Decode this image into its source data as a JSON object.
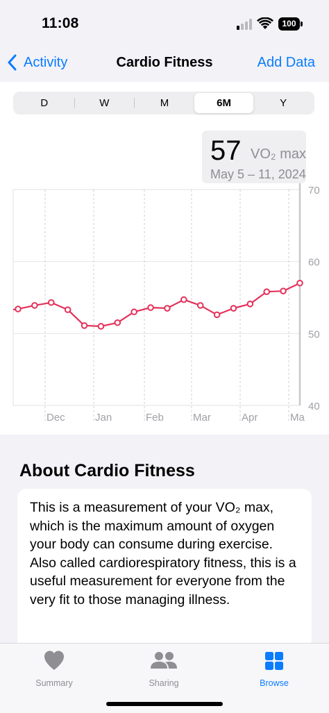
{
  "status": {
    "time": "11:08",
    "battery": "100"
  },
  "nav": {
    "back_label": "Activity",
    "title": "Cardio Fitness",
    "add_data_label": "Add Data"
  },
  "segments": [
    {
      "label": "D",
      "active": false
    },
    {
      "label": "W",
      "active": false
    },
    {
      "label": "M",
      "active": false
    },
    {
      "label": "6M",
      "active": true
    },
    {
      "label": "Y",
      "active": false
    }
  ],
  "selection": {
    "value": "57",
    "unit": "VO₂ max",
    "date_range": "May 5 – 11, 2024"
  },
  "chart_data": {
    "type": "line",
    "x_tick_labels": [
      "Dec",
      "Jan",
      "Feb",
      "Mar",
      "Apr",
      "Ma"
    ],
    "y_tick_labels": [
      "70",
      "60",
      "50",
      "40"
    ],
    "ylim": [
      40,
      70
    ],
    "grid": true,
    "series_color": "#e4325a",
    "series": [
      {
        "values": [
          53.4,
          53.9,
          54.3,
          53.3,
          51.1,
          51.0,
          51.5,
          53.0,
          53.6,
          53.5,
          54.7,
          53.9,
          52.6,
          53.5,
          54.1,
          55.8,
          55.9,
          57.0
        ]
      }
    ]
  },
  "about": {
    "title": "About Cardio Fitness",
    "text": "This is a measurement of your VO₂ max, which is the maximum amount of oxygen your body can consume during exercise. Also called cardiorespiratory fitness, this is a useful measurement for everyone from the very fit to those managing illness."
  },
  "tabs": [
    {
      "label": "Summary",
      "icon": "heart-icon",
      "active": false
    },
    {
      "label": "Sharing",
      "icon": "people-icon",
      "active": false
    },
    {
      "label": "Browse",
      "icon": "grid-icon",
      "active": true
    }
  ],
  "colors": {
    "accent": "#0a7cff",
    "series": "#e4325a",
    "inactive": "#8e8e93"
  }
}
